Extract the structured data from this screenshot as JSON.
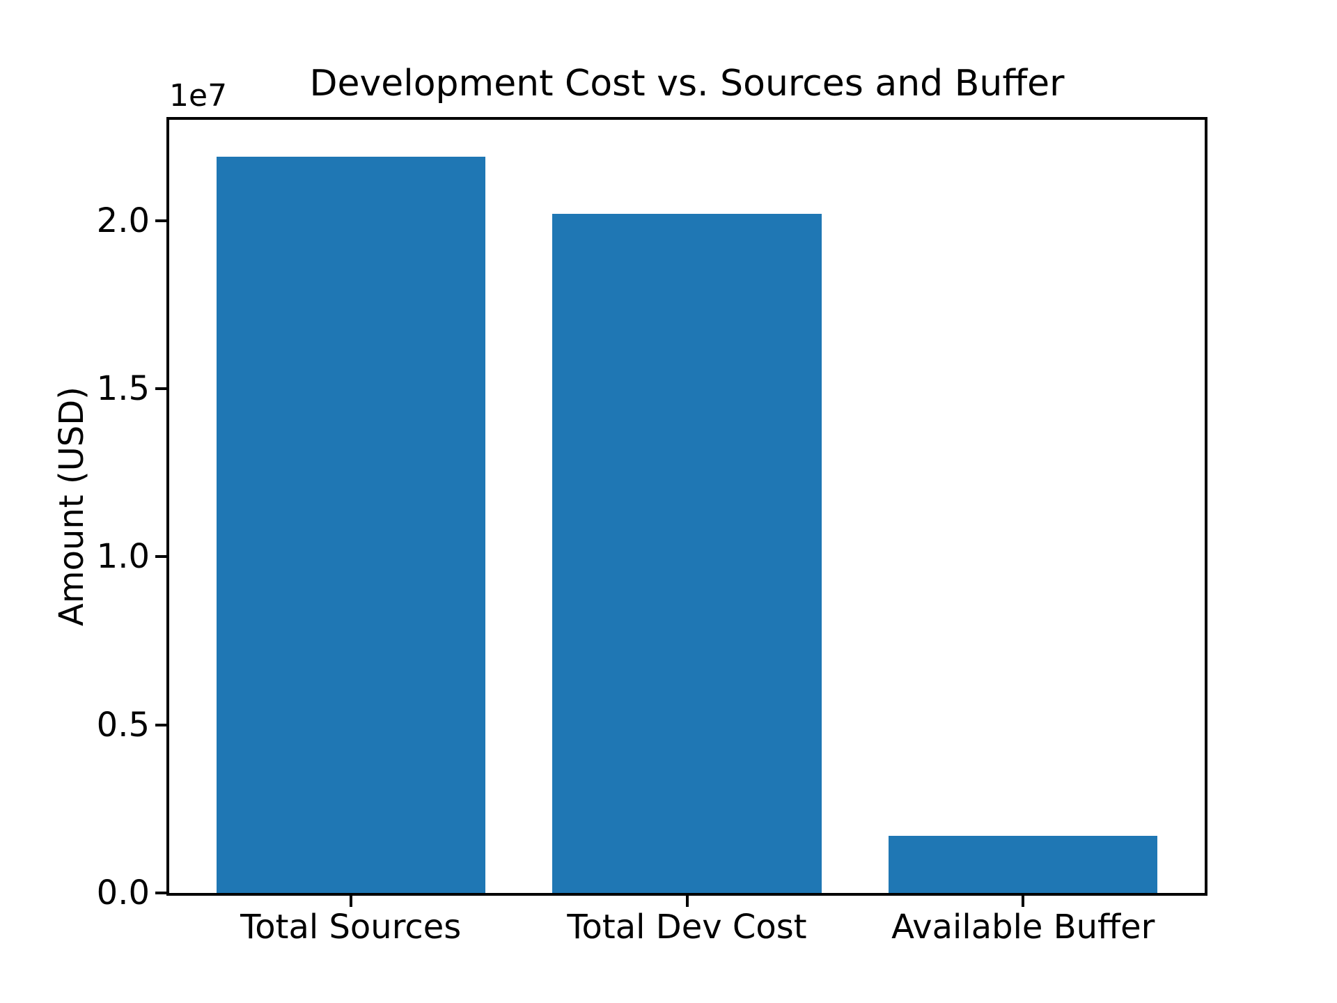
{
  "figure": {
    "background": "#ffffff",
    "text_color": "#000000",
    "axis_color": "#000000"
  },
  "chart_data": {
    "type": "bar",
    "title": "Development Cost vs. Sources and Buffer",
    "xlabel": "",
    "ylabel": "Amount (USD)",
    "y_offset_label": "1e7",
    "categories": [
      "Total Sources",
      "Total Dev Cost",
      "Available Buffer"
    ],
    "values": [
      21900000,
      20200000,
      1700000
    ],
    "bar_color": "#1f77b4",
    "ylim": [
      0,
      23000000
    ],
    "yticks": [
      0,
      5000000,
      10000000,
      15000000,
      20000000
    ],
    "ytick_labels": [
      "0.0",
      "0.5",
      "1.0",
      "1.5",
      "2.0"
    ],
    "grid": false,
    "legend": "none"
  }
}
